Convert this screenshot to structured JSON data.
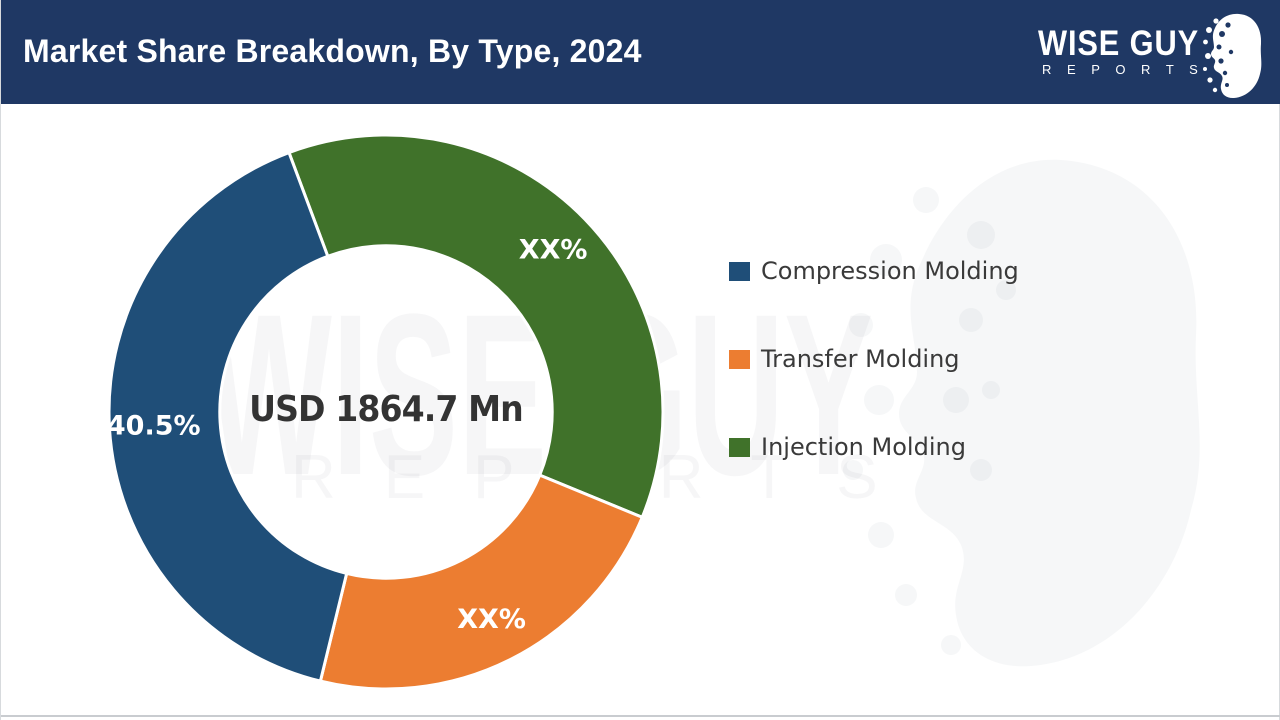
{
  "header": {
    "title": "Market Share Breakdown, By Type, 2024",
    "logo": {
      "name": "WISE GUY",
      "sub": "R E P O R T S"
    },
    "bg_color": "#1F3864"
  },
  "chart_data": {
    "type": "pie",
    "subtype": "donut",
    "title": "Market Share Breakdown, By Type, 2024",
    "center_label": "USD 1864.7 Mn",
    "units": "USD Mn",
    "total_value_mn": 1864.7,
    "start_angle_deg": -20.5,
    "inner_radius_ratio": 0.6,
    "legend_position": "right",
    "segments": [
      {
        "name": "Injection Molding",
        "value_pct": 36.9,
        "label": "XX%",
        "color": "#40722A"
      },
      {
        "name": "Transfer Molding",
        "value_pct": 22.6,
        "label": "XX%",
        "color": "#EC7D31"
      },
      {
        "name": "Compression Molding",
        "value_pct": 40.5,
        "label": "40.5%",
        "color": "#1F4E78"
      }
    ],
    "legend": [
      {
        "label": "Compression Molding",
        "color": "#1F4E78"
      },
      {
        "label": "Transfer Molding",
        "color": "#EC7D31"
      },
      {
        "label": "Injection Molding",
        "color": "#40722A"
      }
    ]
  },
  "watermark": {
    "line1": "WISE GUY",
    "line2": "REPORTS"
  },
  "colors": {
    "header_bg": "#1F3864",
    "slice_blue": "#1F4E78",
    "slice_orange": "#EC7D31",
    "slice_green": "#40722A",
    "legend_text": "#3A3A3A",
    "center_text": "#333333",
    "footer_line": "#C9CCD0"
  }
}
